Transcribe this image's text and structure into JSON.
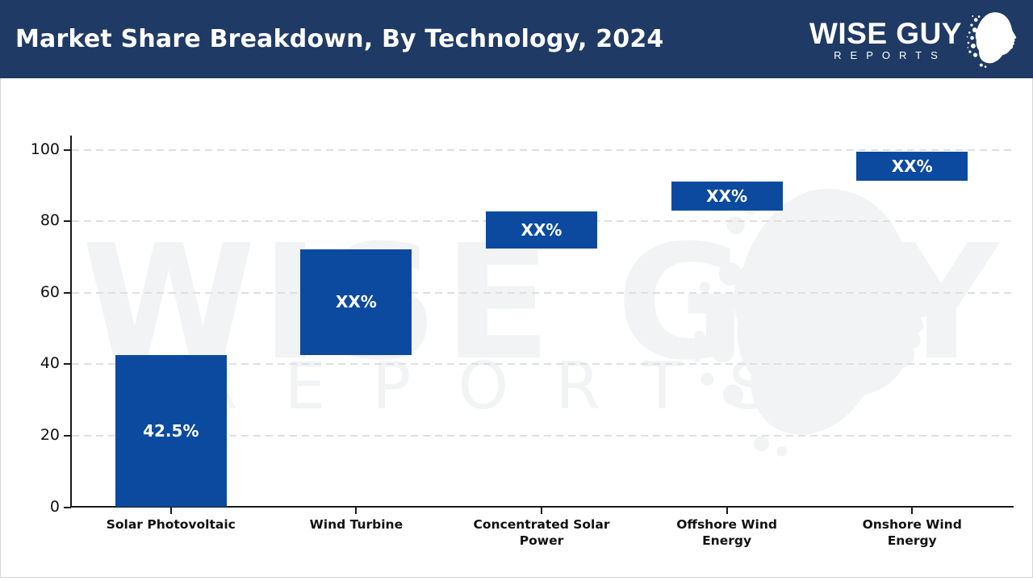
{
  "header": {
    "title": "Market Share Breakdown, By Technology, 2024",
    "logo": {
      "line1": "WISE GUY",
      "line2": "REPORTS"
    }
  },
  "watermark": {
    "line1": "WISE GUY",
    "line2": "REPORTS"
  },
  "chart_data": {
    "type": "bar",
    "variant": "waterfall-floating-bars",
    "title": "Market Share Breakdown, By Technology, 2024",
    "categories": [
      "Solar Photovoltaic",
      "Wind Turbine",
      "Concentrated Solar Power",
      "Offshore Wind Energy",
      "Onshore Wind Energy"
    ],
    "category_label_lines": [
      [
        "Solar Photovoltaic"
      ],
      [
        "Wind Turbine"
      ],
      [
        "Concentrated Solar",
        "Power"
      ],
      [
        "Offshore Wind",
        "Energy"
      ],
      [
        "Onshore Wind",
        "Energy"
      ]
    ],
    "segments": [
      {
        "category": "Solar Photovoltaic",
        "start": 0,
        "end": 42.5,
        "label": "42.5%"
      },
      {
        "category": "Wind Turbine",
        "start": 42.5,
        "end": 72.2,
        "label": "XX%"
      },
      {
        "category": "Concentrated Solar Power",
        "start": 72.3,
        "end": 82.8,
        "label": "XX%"
      },
      {
        "category": "Offshore Wind Energy",
        "start": 82.9,
        "end": 91.1,
        "label": "XX%"
      },
      {
        "category": "Onshore Wind Energy",
        "start": 91.2,
        "end": 99.5,
        "label": "XX%"
      }
    ],
    "ylim": [
      0,
      100
    ],
    "yticks": [
      0,
      20,
      40,
      60,
      80,
      100
    ],
    "xlabel": "",
    "ylabel": "",
    "grid": "horizontal-dashed",
    "legend": "none",
    "bar_color": "#0c4aa0",
    "bar_label_color": "#ffffff"
  },
  "colors": {
    "header_bg": "#1f3a64",
    "bar": "#0c4aa0",
    "grid": "#dfdfdf",
    "axis": "#1a1a1a",
    "watermark": "#f2f3f5",
    "frame_border": "#d5d5d5"
  }
}
